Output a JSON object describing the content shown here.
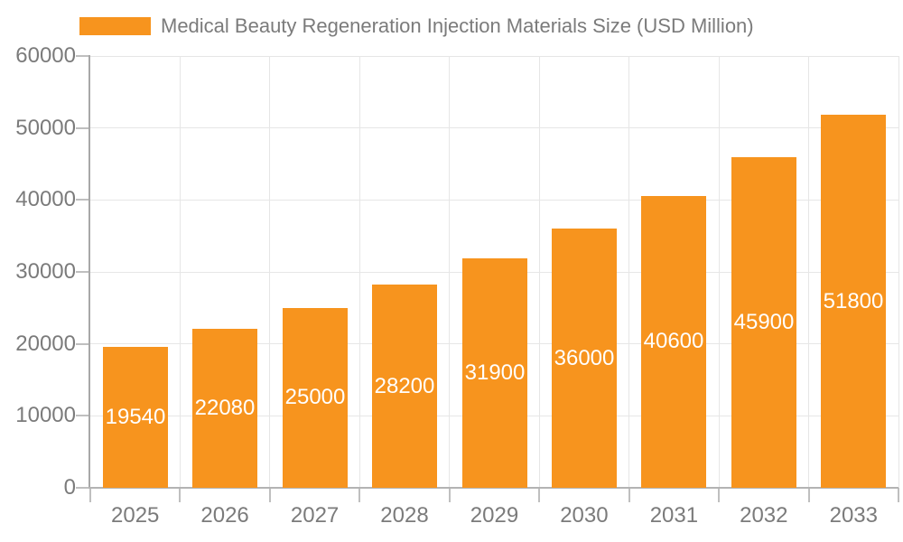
{
  "chart_data": {
    "type": "bar",
    "title": "Medical Beauty Regeneration Injection Materials Size (USD Million)",
    "legend": [
      "Medical Beauty Regeneration Injection Materials Size (USD Million)"
    ],
    "legend_position": "top-left",
    "categories": [
      "2025",
      "2026",
      "2027",
      "2028",
      "2029",
      "2030",
      "2031",
      "2032",
      "2033"
    ],
    "series": [
      {
        "name": "Medical Beauty Regeneration Injection Materials Size (USD Million)",
        "values": [
          19540,
          22080,
          25000,
          28200,
          31900,
          36000,
          40600,
          45900,
          51800
        ]
      }
    ],
    "data_labels": [
      "19540",
      "22080",
      "25000",
      "28200",
      "31900",
      "36000",
      "40600",
      "45900",
      "51800"
    ],
    "bar_label_position": "inside-center",
    "xlabel": "",
    "ylabel": "",
    "ylim": [
      0,
      60000
    ],
    "ytick_step": 10000,
    "ytick_labels": [
      "0",
      "10000",
      "20000",
      "30000",
      "40000",
      "50000",
      "60000"
    ],
    "grid": "both",
    "colors": {
      "bar": "#F7941E",
      "bar_label": "#FFFFFF",
      "axis_text": "#7B7B7B",
      "axis_line": "#A8A8A8",
      "baseline": "#B3B3B3",
      "gridline": "#E6E6E6",
      "tick": "#BFBFBF",
      "background": "#FFFFFF"
    }
  }
}
